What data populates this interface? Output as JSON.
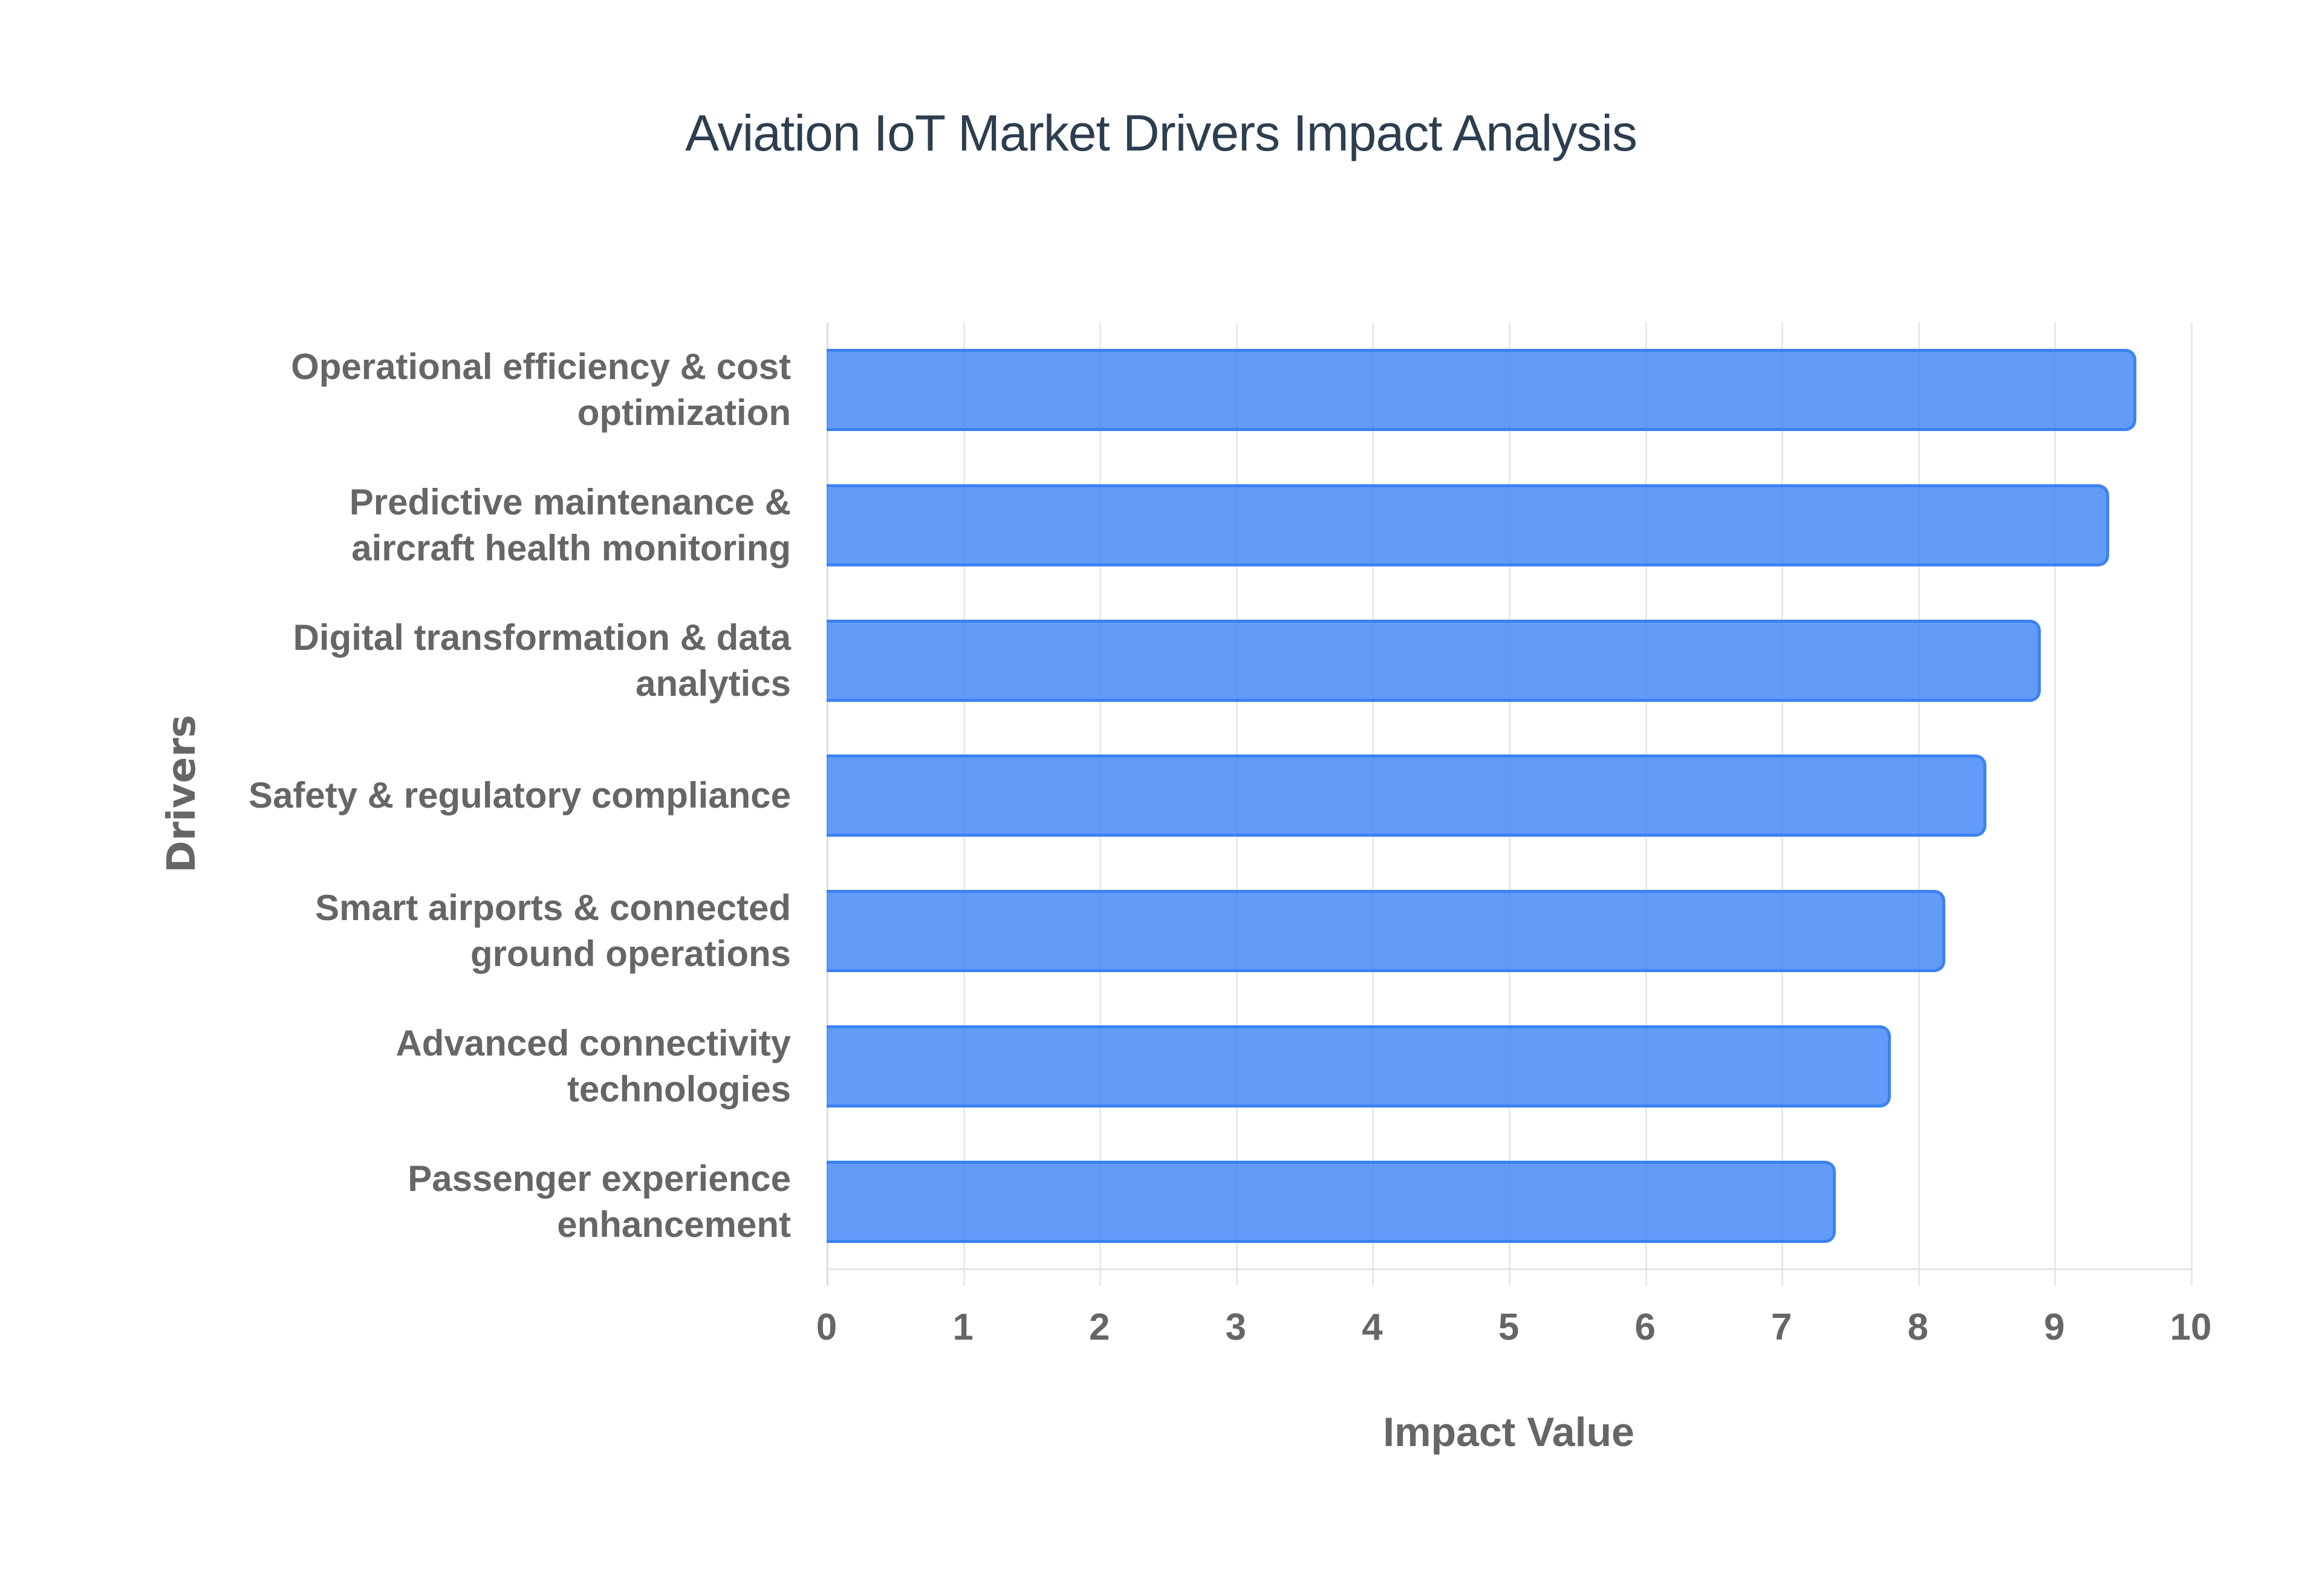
{
  "chart_data": {
    "type": "bar",
    "orientation": "horizontal",
    "title": "Aviation IoT Market Drivers Impact Analysis",
    "xlabel": "Impact Value",
    "ylabel": "Drivers",
    "xlim": [
      0,
      10
    ],
    "xticks": [
      "0",
      "1",
      "2",
      "3",
      "4",
      "5",
      "6",
      "7",
      "8",
      "9",
      "10"
    ],
    "grid": true,
    "legend": null,
    "categories": [
      "Operational efficiency & cost optimization",
      "Predictive maintenance & aircraft health monitoring",
      "Digital transformation & data analytics",
      "Safety & regulatory compliance",
      "Smart airports & connected ground operations",
      "Advanced connectivity technologies",
      "Passenger experience enhancement"
    ],
    "values": [
      9.6,
      9.4,
      8.9,
      8.5,
      8.2,
      7.8,
      7.4
    ],
    "colors": {
      "bar_fill": "#6099f5",
      "bar_border": "#3b82f6",
      "title": "#2c3e50",
      "text": "#666666"
    }
  },
  "labels": [
    {
      "line1": "Operational efficiency & cost",
      "line2": "optimization"
    },
    {
      "line1": "Predictive maintenance &",
      "line2": "aircraft health monitoring"
    },
    {
      "line1": "Digital transformation & data",
      "line2": "analytics"
    },
    {
      "line1": "Safety & regulatory compliance",
      "line2": ""
    },
    {
      "line1": "Smart airports & connected",
      "line2": "ground operations"
    },
    {
      "line1": "Advanced connectivity",
      "line2": "technologies"
    },
    {
      "line1": "Passenger experience",
      "line2": "enhancement"
    }
  ]
}
